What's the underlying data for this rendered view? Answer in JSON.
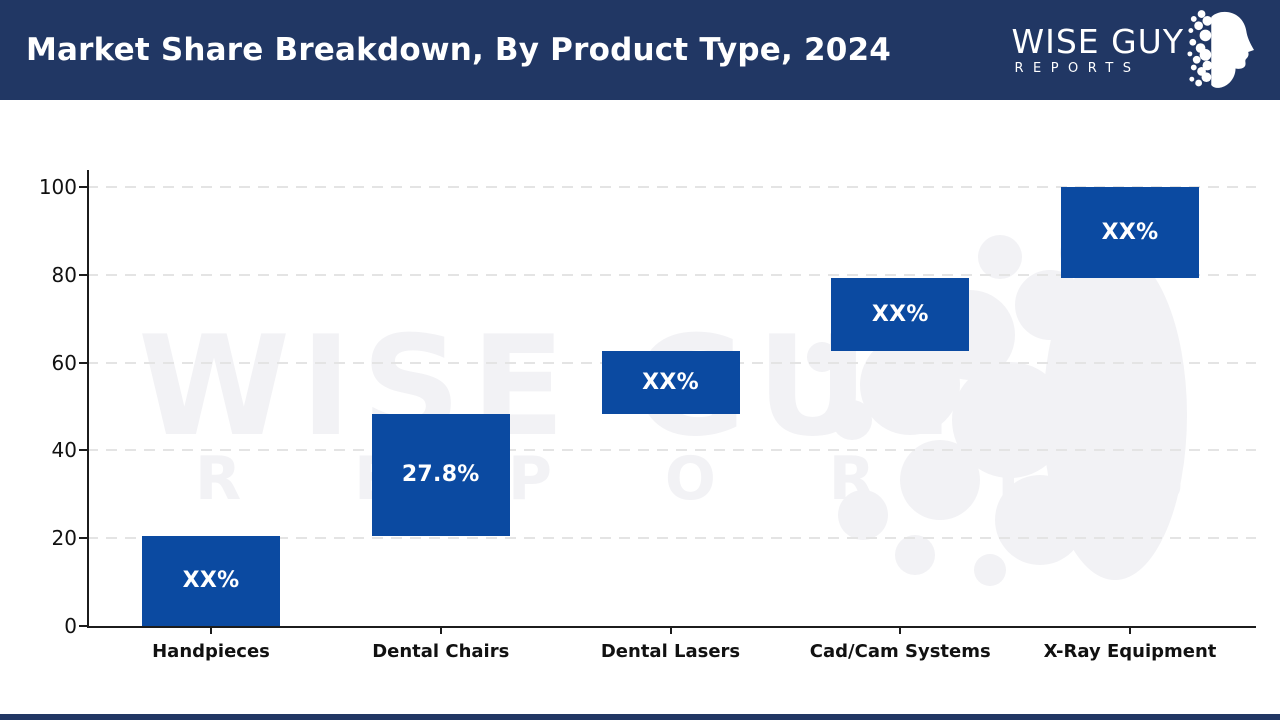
{
  "header": {
    "title": "Market Share Breakdown, By Product Type, 2024",
    "logo": {
      "brand": "WISE GUY",
      "tagline": "REPORTS"
    }
  },
  "watermark": {
    "brand": "WISE GUY",
    "tagline": "R E P O R T S"
  },
  "colors": {
    "header_bg": "#213764",
    "footer_bg": "#213764",
    "bar": "#0b4aa1",
    "bar_label": "#ffffff",
    "grid": "#e4e4e4",
    "axis": "#1c1c1c",
    "title_text": "#ffffff",
    "watermark": "#f2f2f5"
  },
  "chart_data": {
    "type": "bar",
    "subtype": "floating-waterfall",
    "title": "Market Share Breakdown, By Product Type, 2024",
    "xlabel": "",
    "ylabel": "",
    "ylim": [
      0,
      100
    ],
    "yticks": [
      0,
      20,
      40,
      60,
      80,
      100
    ],
    "grid": true,
    "legend": false,
    "categories": [
      "Handpieces",
      "Dental Chairs",
      "Dental Lasers",
      "Cad/Cam Systems",
      "X-Ray Equipment"
    ],
    "bars": [
      {
        "category": "Handpieces",
        "start": 0,
        "end": 20.6,
        "label": "XX%"
      },
      {
        "category": "Dental Chairs",
        "start": 20.6,
        "end": 48.4,
        "label": "27.8%"
      },
      {
        "category": "Dental Lasers",
        "start": 48.4,
        "end": 62.6,
        "label": "XX%"
      },
      {
        "category": "Cad/Cam Systems",
        "start": 62.6,
        "end": 79.2,
        "label": "XX%"
      },
      {
        "category": "X-Ray Equipment",
        "start": 79.2,
        "end": 100,
        "label": "XX%"
      }
    ]
  }
}
